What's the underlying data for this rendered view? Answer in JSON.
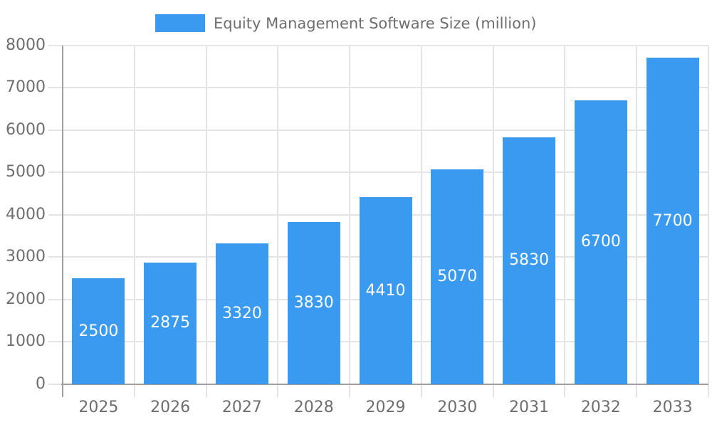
{
  "chart_data": {
    "type": "bar",
    "title": "Equity Management Software Size (million)",
    "categories": [
      "2025",
      "2026",
      "2027",
      "2028",
      "2029",
      "2030",
      "2031",
      "2032",
      "2033"
    ],
    "values": [
      2500,
      2875,
      3320,
      3830,
      4410,
      5070,
      5830,
      6700,
      7700
    ],
    "xlabel": "",
    "ylabel": "",
    "ylim": [
      0,
      8000
    ],
    "yticks": [
      0,
      1000,
      2000,
      3000,
      4000,
      5000,
      6000,
      7000,
      8000
    ],
    "grid": true,
    "legend_position": "top",
    "value_labels": "inside-center"
  },
  "legend": {
    "label": "Equity Management Software Size (million)"
  },
  "colors": {
    "bar": "#3A9AEF",
    "grid": "#E4E4E4",
    "axis": "#9E9E9E",
    "tick_text": "#6E6E6E",
    "value_label_text": "#FFFFFF",
    "background": "#FFFFFF"
  }
}
